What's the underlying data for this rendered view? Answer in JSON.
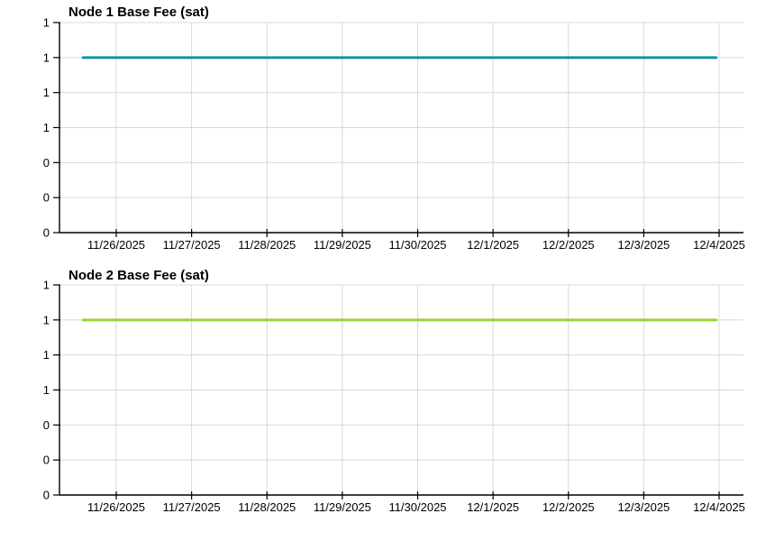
{
  "colors": {
    "background": "#ffffff",
    "grid": "#d8d8d8",
    "axis": "#000000",
    "tick_text": "#000000",
    "node1_line": "#16939f",
    "node2_line": "#9ed239"
  },
  "chart_data": [
    {
      "type": "line",
      "title": "Node 1 Base Fee (sat)",
      "xlabel": "",
      "ylabel": "",
      "x_tick_labels": [
        "11/26/2025",
        "11/27/2025",
        "11/28/2025",
        "11/29/2025",
        "11/30/2025",
        "12/1/2025",
        "12/2/2025",
        "12/3/2025",
        "12/4/2025"
      ],
      "y_tick_labels": [
        "1",
        "1",
        "1",
        "1",
        "0",
        "0",
        "0"
      ],
      "y_tick_values": [
        1.2,
        1.0,
        0.8,
        0.6,
        0.4,
        0.2,
        0
      ],
      "ylim": [
        0,
        1.2
      ],
      "grid": true,
      "legend": false,
      "series": [
        {
          "name": "Node 1 base fee",
          "color": "#16939f",
          "constant_value_sat": 1,
          "x_start": "11/25/2025 (approx midday)",
          "x_end": "12/4/2025",
          "points": [
            {
              "x_day_offset": -0.44,
              "y": 1
            },
            {
              "x_day_offset": 7.96,
              "y": 1
            }
          ]
        }
      ]
    },
    {
      "type": "line",
      "title": "Node 2 Base Fee (sat)",
      "xlabel": "",
      "ylabel": "",
      "x_tick_labels": [
        "11/26/2025",
        "11/27/2025",
        "11/28/2025",
        "11/29/2025",
        "11/30/2025",
        "12/1/2025",
        "12/2/2025",
        "12/3/2025",
        "12/4/2025"
      ],
      "y_tick_labels": [
        "1",
        "1",
        "1",
        "1",
        "0",
        "0",
        "0"
      ],
      "y_tick_values": [
        1.2,
        1.0,
        0.8,
        0.6,
        0.4,
        0.2,
        0
      ],
      "ylim": [
        0,
        1.2
      ],
      "grid": true,
      "legend": false,
      "series": [
        {
          "name": "Node 2 base fee",
          "color": "#9ed239",
          "constant_value_sat": 1,
          "x_start": "11/25/2025 (approx midday)",
          "x_end": "12/4/2025",
          "points": [
            {
              "x_day_offset": -0.44,
              "y": 1
            },
            {
              "x_day_offset": 7.96,
              "y": 1
            }
          ]
        }
      ]
    }
  ]
}
